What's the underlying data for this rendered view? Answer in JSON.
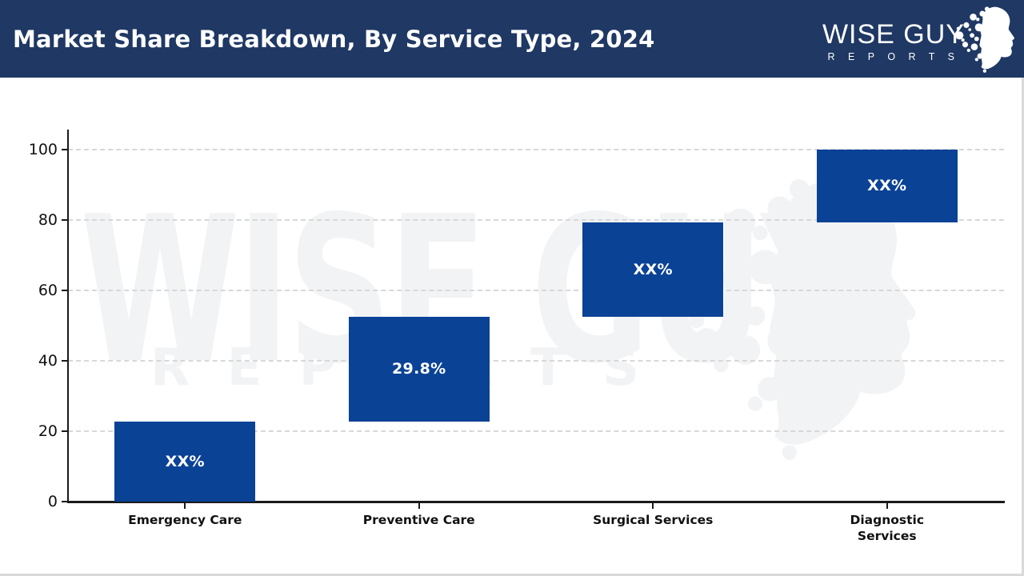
{
  "header": {
    "title": "Market Share Breakdown, By Service Type, 2024",
    "logo": {
      "wordmark": "WISE GUY",
      "tagline": "R E P O R T S"
    }
  },
  "watermark": {
    "wordmark": "WISE GUY",
    "tagline": "R E P O R T S"
  },
  "chart_data": {
    "type": "bar",
    "subtype": "waterfall",
    "title": "Market Share Breakdown, By Service Type, 2024",
    "unit": "%",
    "categories": [
      "Emergency Care",
      "Preventive Care",
      "Surgical Services",
      "Diagnostic Services"
    ],
    "series": [
      {
        "name": "Market share",
        "segments": [
          {
            "category": "Emergency Care",
            "start": 0,
            "end": 22.7,
            "value": 22.7,
            "label": "XX%"
          },
          {
            "category": "Preventive Care",
            "start": 22.7,
            "end": 52.5,
            "value": 29.8,
            "label": "29.8%"
          },
          {
            "category": "Surgical Services",
            "start": 52.5,
            "end": 79.2,
            "value": 26.7,
            "label": "XX%"
          },
          {
            "category": "Diagnostic Services",
            "start": 79.2,
            "end": 100,
            "value": 20.8,
            "label": "XX%"
          }
        ]
      }
    ],
    "ylim": [
      0,
      105.6
    ],
    "yticks": [
      0,
      20,
      40,
      60,
      80,
      100
    ],
    "grid": true,
    "grid_style": "dashed",
    "legend": false,
    "bar_color": "#0a4296",
    "bar_label_color": "#ffffff"
  },
  "colors": {
    "header_bg": "#1f3864",
    "bar": "#0a4296",
    "gridline": "#d8d8d8",
    "axis": "#1a1a1a",
    "watermark": "#f2f3f5",
    "page_border": "#d9d9d9"
  }
}
